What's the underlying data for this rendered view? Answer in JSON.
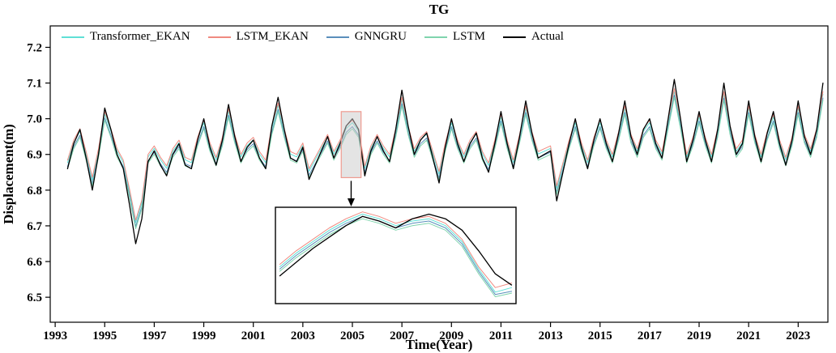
{
  "chart_data": {
    "type": "line",
    "title": "TG",
    "xlabel": "Time(Year)",
    "ylabel": "Displacement(m)",
    "xlim": [
      1992.8,
      2024.2
    ],
    "ylim": [
      6.43,
      7.26
    ],
    "xticks": [
      1993,
      1995,
      1997,
      1999,
      2001,
      2003,
      2005,
      2007,
      2009,
      2011,
      2013,
      2015,
      2017,
      2019,
      2021,
      2023
    ],
    "yticks": [
      6.5,
      6.6,
      6.7,
      6.8,
      6.9,
      7.0,
      7.1,
      7.2
    ],
    "grid": false,
    "legend_position": "top-left-inside",
    "x_start": 1993.5,
    "x_step": 0.25,
    "series": [
      {
        "name": "Transformer_EKAN",
        "color": "#5fe0d6",
        "values": [
          6.877,
          6.933,
          6.965,
          6.901,
          6.829,
          6.909,
          7.013,
          6.965,
          6.909,
          6.877,
          6.797,
          6.709,
          6.765,
          6.893,
          6.917,
          6.885,
          6.861,
          6.909,
          6.933,
          6.885,
          6.877,
          6.941,
          6.989,
          6.925,
          6.885,
          6.941,
          7.021,
          6.949,
          6.893,
          6.925,
          6.941,
          6.901,
          6.877,
          6.973,
          7.037,
          6.965,
          6.901,
          6.893,
          6.925,
          6.853,
          6.885,
          6.917,
          6.949,
          6.901,
          6.933,
          6.973,
          6.989,
          6.965,
          6.861,
          6.917,
          6.949,
          6.917,
          6.893,
          6.965,
          7.053,
          6.973,
          6.909,
          6.941,
          6.957,
          6.901,
          6.845,
          6.925,
          6.989,
          6.933,
          6.893,
          6.933,
          6.957,
          6.901,
          6.869,
          6.933,
          7.005,
          6.933,
          6.877,
          6.949,
          7.029,
          6.957,
          6.901,
          6.909,
          6.917,
          6.805,
          6.869,
          6.933,
          6.989,
          6.925,
          6.877,
          6.941,
          6.989,
          6.933,
          6.893,
          6.957,
          7.029,
          6.949,
          6.909,
          6.965,
          6.989,
          6.933,
          6.901,
          6.989,
          7.077,
          6.989,
          6.893,
          6.941,
          7.005,
          6.941,
          6.893,
          6.965,
          7.069,
          6.973,
          6.909,
          6.933,
          7.029,
          6.949,
          6.893,
          6.957,
          7.005,
          6.933,
          6.885,
          6.941,
          7.029,
          6.949,
          6.909,
          6.965,
          7.069
        ]
      },
      {
        "name": "LSTM_EKAN",
        "color": "#f08a80",
        "values": [
          6.884,
          6.94,
          6.972,
          6.908,
          6.836,
          6.916,
          7.02,
          6.972,
          6.916,
          6.884,
          6.804,
          6.716,
          6.772,
          6.9,
          6.924,
          6.892,
          6.868,
          6.916,
          6.94,
          6.892,
          6.884,
          6.948,
          6.996,
          6.932,
          6.892,
          6.948,
          7.028,
          6.956,
          6.9,
          6.932,
          6.948,
          6.908,
          6.884,
          6.98,
          7.044,
          6.972,
          6.908,
          6.9,
          6.932,
          6.86,
          6.892,
          6.924,
          6.956,
          6.908,
          6.94,
          6.98,
          6.996,
          6.972,
          6.868,
          6.924,
          6.956,
          6.924,
          6.9,
          6.972,
          7.06,
          6.98,
          6.916,
          6.948,
          6.964,
          6.908,
          6.852,
          6.932,
          6.996,
          6.94,
          6.9,
          6.94,
          6.964,
          6.908,
          6.876,
          6.94,
          7.012,
          6.94,
          6.884,
          6.956,
          7.036,
          6.964,
          6.908,
          6.916,
          6.924,
          6.812,
          6.876,
          6.94,
          6.996,
          6.932,
          6.884,
          6.948,
          6.996,
          6.94,
          6.9,
          6.964,
          7.036,
          6.956,
          6.916,
          6.972,
          6.996,
          6.94,
          6.908,
          6.996,
          7.084,
          6.996,
          6.9,
          6.948,
          7.012,
          6.948,
          6.9,
          6.972,
          7.076,
          6.98,
          6.916,
          6.94,
          7.036,
          6.956,
          6.9,
          6.964,
          7.012,
          6.94,
          6.892,
          6.948,
          7.036,
          6.956,
          6.916,
          6.972,
          7.076
        ]
      },
      {
        "name": "GNNGRU",
        "color": "#5a8fbb",
        "values": [
          6.866,
          6.922,
          6.954,
          6.89,
          6.818,
          6.898,
          7.002,
          6.954,
          6.898,
          6.866,
          6.786,
          6.698,
          6.754,
          6.882,
          6.906,
          6.874,
          6.85,
          6.898,
          6.922,
          6.874,
          6.866,
          6.93,
          6.978,
          6.914,
          6.874,
          6.93,
          7.01,
          6.938,
          6.882,
          6.914,
          6.93,
          6.89,
          6.866,
          6.962,
          7.026,
          6.954,
          6.89,
          6.882,
          6.914,
          6.842,
          6.874,
          6.906,
          6.938,
          6.89,
          6.922,
          6.962,
          6.978,
          6.954,
          6.85,
          6.906,
          6.938,
          6.906,
          6.882,
          6.954,
          7.042,
          6.962,
          6.898,
          6.93,
          6.946,
          6.89,
          6.834,
          6.914,
          6.978,
          6.922,
          6.882,
          6.922,
          6.946,
          6.89,
          6.858,
          6.922,
          6.994,
          6.922,
          6.866,
          6.938,
          7.018,
          6.946,
          6.89,
          6.898,
          6.906,
          6.794,
          6.858,
          6.922,
          6.978,
          6.914,
          6.866,
          6.93,
          6.978,
          6.922,
          6.882,
          6.946,
          7.018,
          6.938,
          6.898,
          6.954,
          6.978,
          6.922,
          6.89,
          6.978,
          7.066,
          6.978,
          6.882,
          6.93,
          6.994,
          6.93,
          6.882,
          6.954,
          7.058,
          6.962,
          6.898,
          6.922,
          7.018,
          6.938,
          6.882,
          6.946,
          6.994,
          6.922,
          6.874,
          6.93,
          7.018,
          6.938,
          6.898,
          6.954,
          7.058
        ]
      },
      {
        "name": "LSTM",
        "color": "#7fd4ad",
        "values": [
          6.86,
          6.916,
          6.948,
          6.884,
          6.812,
          6.892,
          6.996,
          6.948,
          6.892,
          6.86,
          6.78,
          6.692,
          6.748,
          6.876,
          6.9,
          6.868,
          6.844,
          6.892,
          6.916,
          6.868,
          6.86,
          6.924,
          6.972,
          6.908,
          6.868,
          6.924,
          7.004,
          6.932,
          6.876,
          6.908,
          6.924,
          6.884,
          6.86,
          6.956,
          7.02,
          6.948,
          6.884,
          6.876,
          6.908,
          6.836,
          6.868,
          6.9,
          6.932,
          6.884,
          6.916,
          6.956,
          6.972,
          6.948,
          6.844,
          6.9,
          6.932,
          6.9,
          6.876,
          6.948,
          7.036,
          6.956,
          6.892,
          6.924,
          6.94,
          6.884,
          6.828,
          6.908,
          6.972,
          6.916,
          6.876,
          6.916,
          6.94,
          6.884,
          6.852,
          6.916,
          6.988,
          6.916,
          6.86,
          6.932,
          7.012,
          6.94,
          6.884,
          6.892,
          6.9,
          6.788,
          6.852,
          6.916,
          6.972,
          6.908,
          6.86,
          6.924,
          6.972,
          6.916,
          6.876,
          6.94,
          7.012,
          6.932,
          6.892,
          6.948,
          6.972,
          6.916,
          6.884,
          6.972,
          7.06,
          6.972,
          6.876,
          6.924,
          6.988,
          6.924,
          6.876,
          6.948,
          7.052,
          6.956,
          6.892,
          6.916,
          7.012,
          6.932,
          6.876,
          6.94,
          6.988,
          6.916,
          6.868,
          6.924,
          7.012,
          6.932,
          6.892,
          6.948,
          7.052
        ]
      },
      {
        "name": "Actual",
        "color": "#000000",
        "values": [
          6.86,
          6.93,
          6.97,
          6.89,
          6.8,
          6.9,
          7.03,
          6.97,
          6.9,
          6.86,
          6.76,
          6.65,
          6.72,
          6.88,
          6.91,
          6.87,
          6.84,
          6.9,
          6.93,
          6.87,
          6.86,
          6.94,
          7.0,
          6.92,
          6.87,
          6.94,
          7.04,
          6.95,
          6.88,
          6.92,
          6.94,
          6.89,
          6.86,
          6.98,
          7.06,
          6.97,
          6.89,
          6.88,
          6.92,
          6.83,
          6.87,
          6.91,
          6.95,
          6.89,
          6.93,
          6.98,
          7.0,
          6.97,
          6.84,
          6.91,
          6.95,
          6.91,
          6.88,
          6.97,
          7.08,
          6.98,
          6.9,
          6.94,
          6.96,
          6.89,
          6.82,
          6.92,
          7.0,
          6.93,
          6.88,
          6.93,
          6.96,
          6.89,
          6.85,
          6.93,
          7.02,
          6.93,
          6.86,
          6.95,
          7.05,
          6.96,
          6.89,
          6.9,
          6.91,
          6.77,
          6.85,
          6.93,
          7.0,
          6.92,
          6.86,
          6.94,
          7.0,
          6.93,
          6.88,
          6.96,
          7.05,
          6.95,
          6.9,
          6.97,
          7.0,
          6.93,
          6.89,
          7.0,
          7.11,
          7.0,
          6.88,
          6.94,
          7.02,
          6.94,
          6.88,
          6.97,
          7.1,
          6.98,
          6.9,
          6.93,
          7.05,
          6.95,
          6.88,
          6.96,
          7.02,
          6.93,
          6.87,
          6.94,
          7.05,
          6.95,
          6.9,
          6.97,
          7.1
        ]
      }
    ],
    "highlight_box": {
      "x0": 2004.55,
      "x1": 2005.35,
      "y0": 6.835,
      "y1": 7.02,
      "fill": "#c9c9c9",
      "stroke": "#ef9a8f"
    },
    "inset": {
      "x_range": [
        2004.48,
        2005.64
      ],
      "y_range": [
        6.805,
        7.015
      ],
      "x": [
        2004.5,
        2004.58,
        2004.66,
        2004.74,
        2004.82,
        2004.9,
        2004.98,
        2005.06,
        2005.14,
        2005.22,
        2005.3,
        2005.38,
        2005.46,
        2005.54,
        2005.62
      ],
      "series": [
        {
          "name": "Transformer_EKAN",
          "values": [
            6.885,
            6.915,
            6.94,
            6.965,
            6.985,
            7.0,
            6.99,
            6.975,
            6.985,
            6.99,
            6.975,
            6.94,
            6.88,
            6.83,
            6.84
          ]
        },
        {
          "name": "LSTM_EKAN",
          "values": [
            6.89,
            6.92,
            6.945,
            6.97,
            6.99,
            7.005,
            6.995,
            6.98,
            6.99,
            6.995,
            6.98,
            6.945,
            6.885,
            6.84,
            6.85
          ]
        },
        {
          "name": "GNNGRU",
          "values": [
            6.88,
            6.91,
            6.935,
            6.96,
            6.98,
            6.995,
            6.985,
            6.97,
            6.98,
            6.985,
            6.97,
            6.935,
            6.875,
            6.825,
            6.832
          ]
        },
        {
          "name": "LSTM",
          "values": [
            6.875,
            6.905,
            6.93,
            6.955,
            6.975,
            6.99,
            6.98,
            6.965,
            6.975,
            6.98,
            6.965,
            6.93,
            6.87,
            6.82,
            6.828
          ]
        },
        {
          "name": "Actual",
          "values": [
            6.865,
            6.895,
            6.925,
            6.95,
            6.975,
            6.995,
            6.985,
            6.97,
            6.99,
            7.0,
            6.99,
            6.965,
            6.92,
            6.87,
            6.845
          ]
        }
      ]
    }
  }
}
